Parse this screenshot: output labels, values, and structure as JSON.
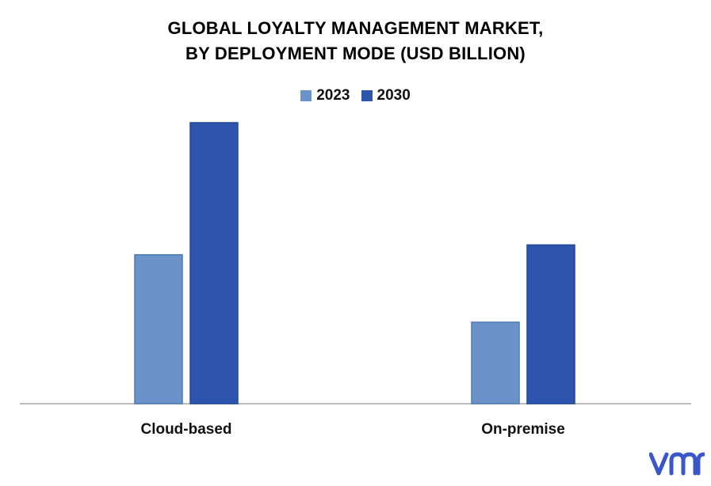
{
  "chart_data": {
    "type": "bar",
    "title_line1": "GLOBAL LOYALTY MANAGEMENT MARKET,",
    "title_line2": "BY DEPLOYMENT MODE (USD BILLION)",
    "categories": [
      "Cloud-based",
      "On-premise"
    ],
    "series": [
      {
        "name": "2023",
        "values": [
          5.3,
          2.9
        ],
        "color": "#6a93c9"
      },
      {
        "name": "2030",
        "values": [
          10.0,
          5.65
        ],
        "color": "#2e55ad"
      }
    ],
    "ylim": [
      0,
      10
    ],
    "grid": false,
    "legend": "top-center"
  },
  "logo": {
    "name": "vmr-logo",
    "color": "#3a56c8"
  }
}
